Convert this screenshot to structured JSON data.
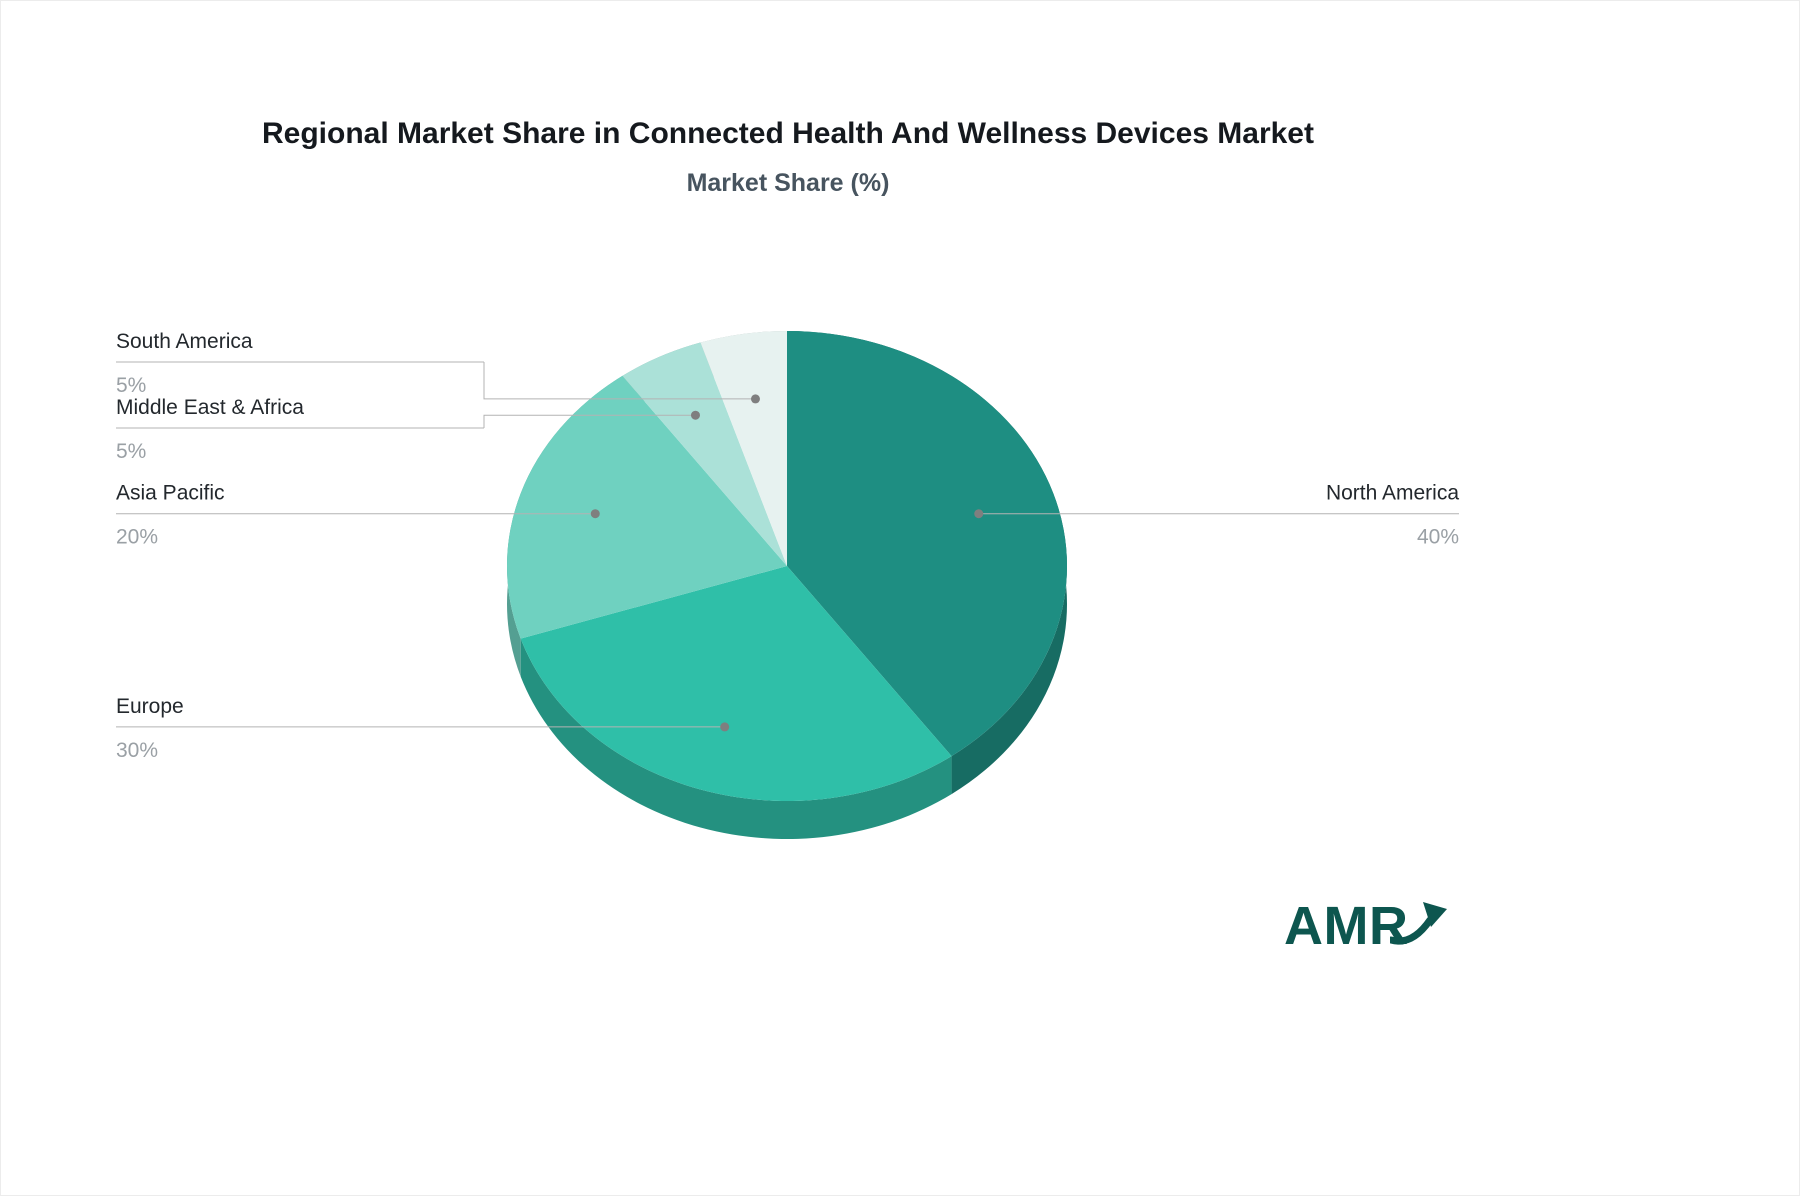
{
  "chart_data": {
    "type": "pie",
    "title": "Regional Market Share in Connected Health And Wellness Devices Market",
    "subtitle": "Market Share (%)",
    "labels": [
      "North America",
      "Europe",
      "Asia Pacific",
      "Middle East & Africa",
      "South America"
    ],
    "values": [
      40,
      30,
      20,
      5,
      5
    ],
    "value_labels": [
      "40%",
      "30%",
      "20%",
      "5%",
      "5%"
    ],
    "colors": [
      "#1e8e82",
      "#2fbfa8",
      "#6fd1c0",
      "#abe1d8",
      "#e7f2f0"
    ],
    "start_angle_deg": 0,
    "direction": "clockwise",
    "effect": "3d",
    "legend_position": "none",
    "grid": false
  },
  "branding": {
    "logo_text": "AMR",
    "logo_color": "#0d564f"
  }
}
